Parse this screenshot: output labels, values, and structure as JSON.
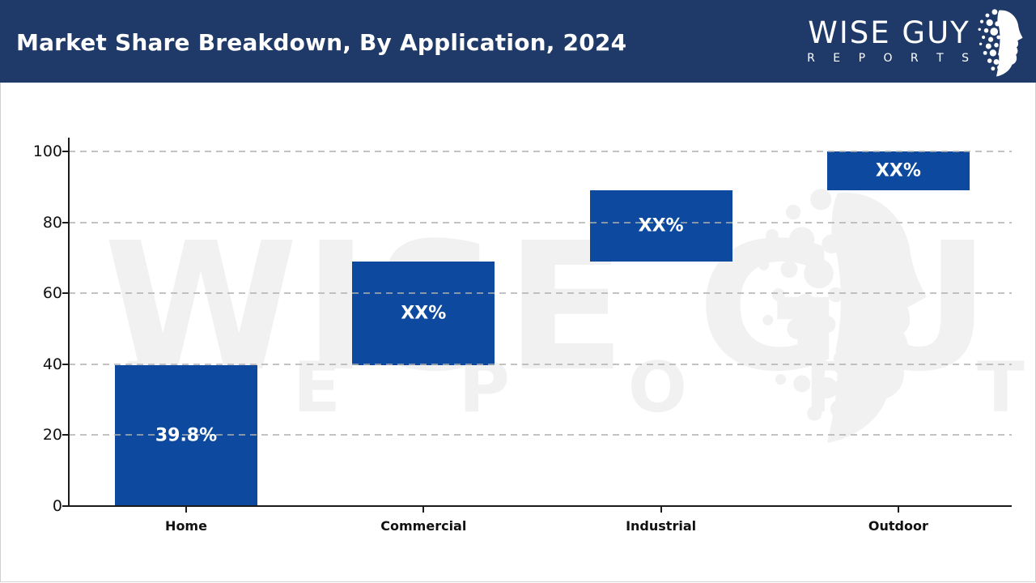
{
  "header": {
    "title": "Market Share Breakdown, By Application, 2024",
    "logo": {
      "line1": "WISE GUY",
      "line2": "R E P O R T S"
    }
  },
  "watermark": {
    "line1": "WISE GU",
    "line2": "R E P O R T S"
  },
  "colors": {
    "header_bg": "#1f3a68",
    "bar": "#0d4a9f",
    "bar_label_text": "#ffffff",
    "axis": "#1a1a1a",
    "grid": "#bdbdbd",
    "watermark": "#f1f1f2"
  },
  "chart_data": {
    "type": "bar",
    "subtype": "waterfall",
    "title": "Market Share Breakdown, By Application, 2024",
    "categories": [
      "Home",
      "Commercial",
      "Industrial",
      "Outdoor"
    ],
    "segments": [
      {
        "category": "Home",
        "start": 0,
        "end": 39.8,
        "label": "39.8%"
      },
      {
        "category": "Commercial",
        "start": 39.8,
        "end": 69.0,
        "label": "XX%"
      },
      {
        "category": "Industrial",
        "start": 69.0,
        "end": 89.0,
        "label": "XX%"
      },
      {
        "category": "Outdoor",
        "start": 89.0,
        "end": 100.0,
        "label": "XX%"
      }
    ],
    "y_ticks": [
      0,
      20,
      40,
      60,
      80,
      100
    ],
    "ylim": [
      0,
      104
    ],
    "xlabel": "",
    "ylabel": "",
    "grid": "dashed-horizontal-over-bars",
    "legend": "none"
  }
}
